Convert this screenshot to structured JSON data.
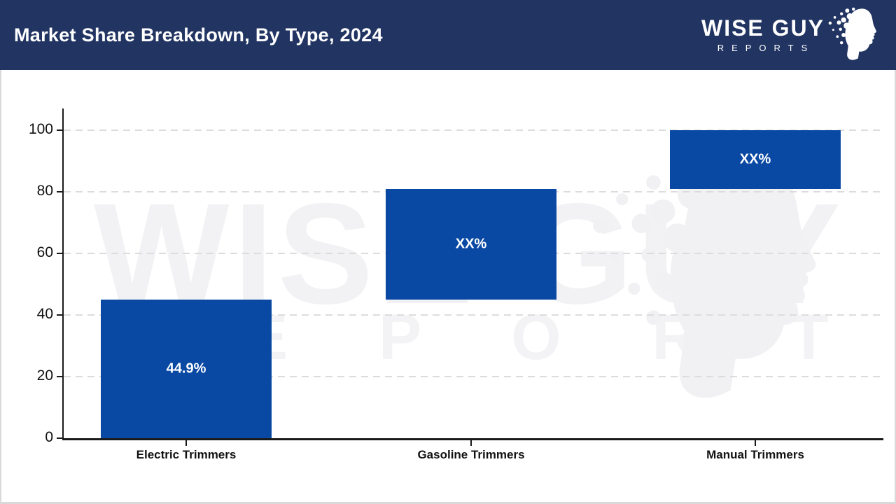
{
  "header": {
    "title": "Market Share Breakdown, By Type, 2024",
    "logo": {
      "line1": "WISE GUY",
      "line2": "REPORTS"
    }
  },
  "watermark": {
    "line1": "WISE GUY",
    "line2": "R E P O R T S"
  },
  "colors": {
    "header_bg": "#213462",
    "bar": "#0a49a3",
    "grid": "#dcdcdc",
    "axis": "#1a1a1a",
    "bar_label_text": "#ffffff",
    "watermark": "#f2f2f4",
    "border": "#d9d9d9"
  },
  "chart_data": {
    "type": "bar",
    "subtype": "waterfall",
    "title": "Market Share Breakdown, By Type, 2024",
    "categories": [
      "Electric Trimmers",
      "Gasoline Trimmers",
      "Manual Trimmers"
    ],
    "segments": [
      {
        "category": "Electric Trimmers",
        "start": 0,
        "end": 44.9,
        "label": "44.9%"
      },
      {
        "category": "Gasoline Trimmers",
        "start": 44.9,
        "end": 80.8,
        "label": "XX%"
      },
      {
        "category": "Manual Trimmers",
        "start": 80.8,
        "end": 100,
        "label": "XX%"
      }
    ],
    "yticks": [
      0,
      20,
      40,
      60,
      80,
      100
    ],
    "ylim": [
      0,
      105
    ],
    "xlabel": "",
    "ylabel": "",
    "grid": "horizontal-dashed",
    "legend": "none",
    "bar_color": "#0a49a3"
  }
}
